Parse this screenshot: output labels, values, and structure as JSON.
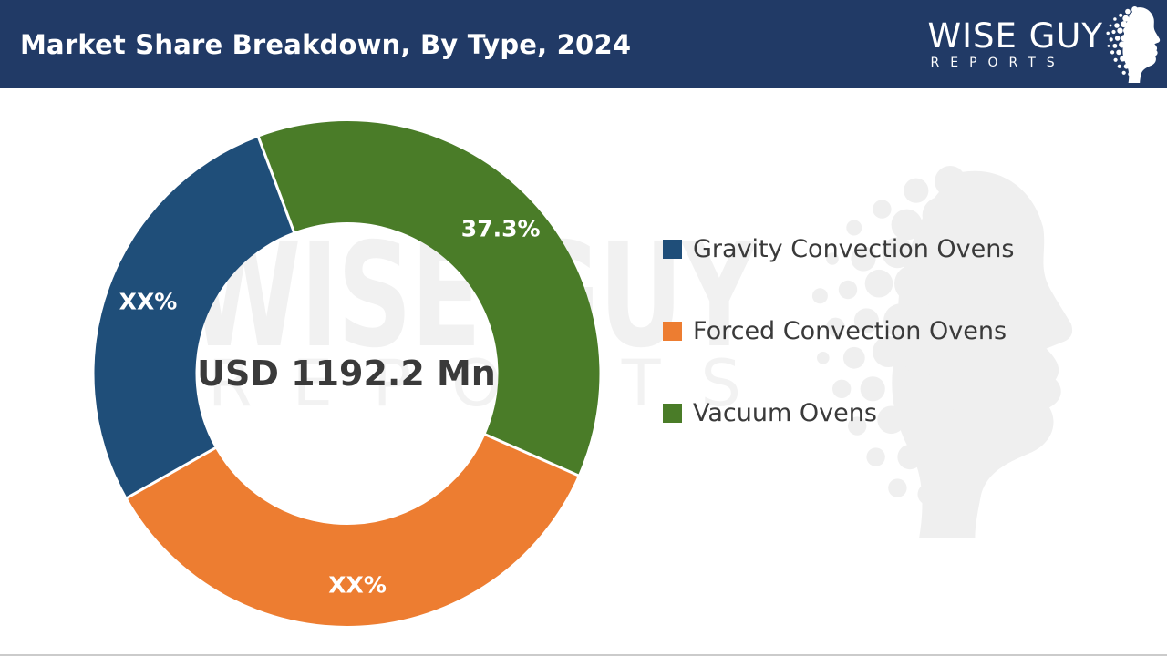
{
  "header": {
    "title": "Market Share Breakdown, By Type, 2024",
    "bg_color": "#213a66",
    "logo": {
      "line1": "WISE GUY",
      "line2": "REPORTS"
    }
  },
  "watermark": {
    "line1": "WISE GUY",
    "line2": "REPORTS"
  },
  "chart_data": {
    "type": "pie",
    "subtype": "donut",
    "title": "Market Share Breakdown, By Type, 2024",
    "center_label": "USD 1192.2 Mn",
    "legend_position": "right",
    "inner_radius_ratio": 0.6,
    "start_angle_deg_from_top": -20.5,
    "winding": "counterclockwise",
    "label_color": "#ffffff",
    "segments": [
      {
        "label": "Gravity Convection Ovens",
        "display_label": "XX%",
        "value_pct": 27.5,
        "estimated_from_arc": true,
        "color": "#1f4e79"
      },
      {
        "label": "Forced Convection Ovens",
        "display_label": "XX%",
        "value_pct": 35.2,
        "estimated_from_arc": true,
        "color": "#ed7d31"
      },
      {
        "label": "Vacuum Ovens",
        "display_label": "37.3%",
        "value_pct": 37.3,
        "estimated_from_arc": false,
        "color": "#4a7c28"
      }
    ]
  }
}
